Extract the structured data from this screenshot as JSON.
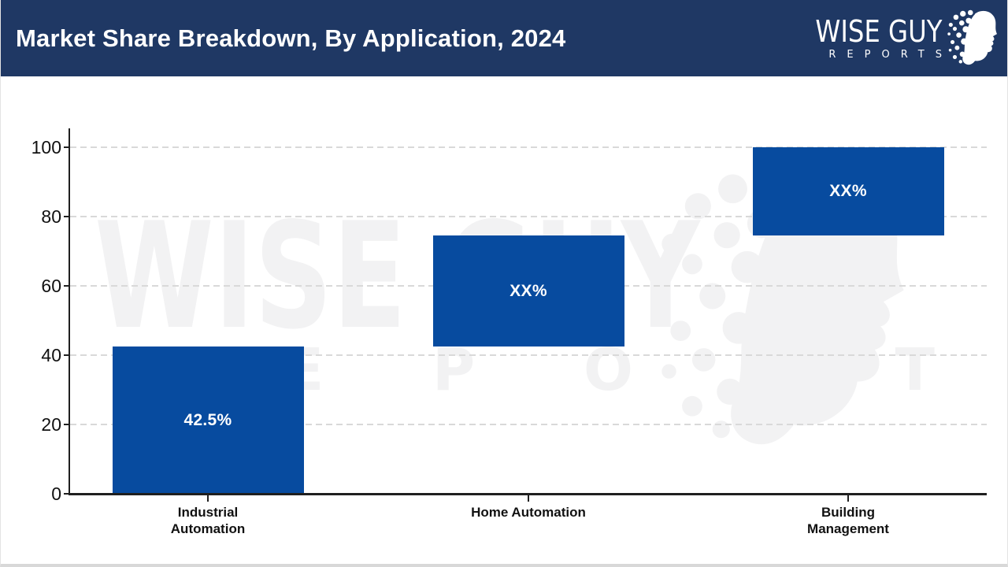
{
  "header": {
    "title": "Market Share Breakdown, By Application, 2024",
    "logo": {
      "brand": "WISE GUY",
      "sub": "REPORTS"
    }
  },
  "watermark": {
    "line1": "WISE GUY",
    "line2": "R E P O R T S"
  },
  "chart_data": {
    "type": "bar",
    "variant": "stacked-waterfall-segments",
    "title": "Market Share Breakdown, By Application, 2024",
    "categories": [
      "Industrial Automation",
      "Home Automation",
      "Building Management"
    ],
    "bars": [
      {
        "category_lines": [
          "Industrial",
          "Automation"
        ],
        "start": 0,
        "end": 42.5,
        "label": "42.5%"
      },
      {
        "category_lines": [
          "Home Automation"
        ],
        "start": 42.5,
        "end": 74.5,
        "label": "XX%"
      },
      {
        "category_lines": [
          "Building",
          "Management"
        ],
        "start": 74.5,
        "end": 100,
        "label": "XX%"
      }
    ],
    "y_axis": {
      "ticks": [
        0,
        20,
        40,
        60,
        80,
        100
      ],
      "range": [
        0,
        105.5
      ]
    },
    "xlabel": "",
    "ylabel": "",
    "grid": "horizontal-dashed",
    "legend": null,
    "colors": {
      "bar": "#074b9f",
      "bar_label": "#ffffff",
      "grid": "#d9d9d9",
      "axis": "#1f1f1f",
      "header_bg": "#1f3864",
      "watermark": "#f2f2f3"
    }
  }
}
